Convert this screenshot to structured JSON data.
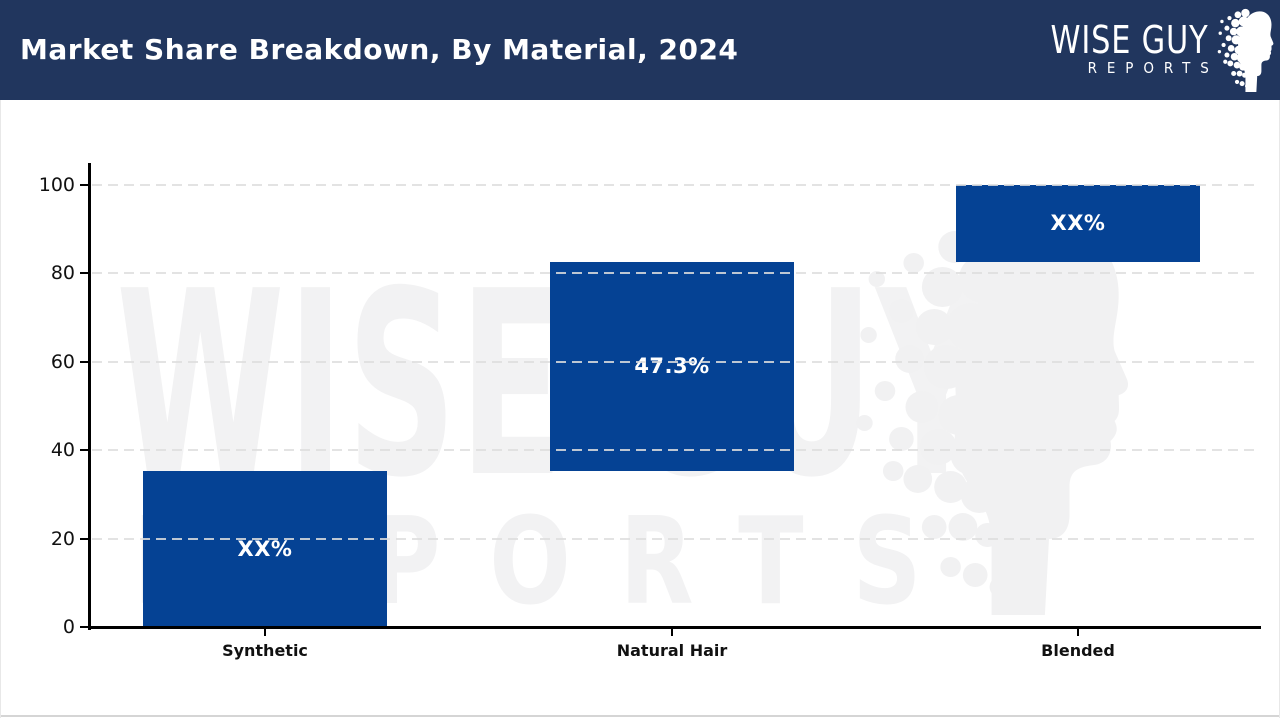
{
  "header": {
    "title": "Market Share Breakdown, By Material, 2024",
    "background_color": "#21365e",
    "logo": {
      "line1": "WISE GUY",
      "line2": "REPORTS",
      "face_icon": "dotted-head-profile"
    }
  },
  "watermark": {
    "line1": "WISE GUY",
    "line2": "REPORTS"
  },
  "chart_data": {
    "type": "bar",
    "variant": "waterfall",
    "title": "Market Share Breakdown, By Material, 2024",
    "categories": [
      "Synthetic",
      "Natural Hair",
      "Blended"
    ],
    "segments": [
      {
        "category": "Synthetic",
        "start": 0,
        "end": 35.3,
        "label": "XX%"
      },
      {
        "category": "Natural Hair",
        "start": 35.3,
        "end": 82.6,
        "label": "47.3%"
      },
      {
        "category": "Blended",
        "start": 82.6,
        "end": 100,
        "label": "XX%"
      }
    ],
    "values": [
      35.3,
      47.3,
      17.4
    ],
    "bar_labels": [
      "XX%",
      "47.3%",
      "XX%"
    ],
    "yticks": [
      0,
      20,
      40,
      60,
      80,
      100
    ],
    "ylim": [
      0,
      100
    ],
    "xlabel": "",
    "ylabel": "",
    "bar_color": "#054294",
    "grid": "horizontal-dashed",
    "gridline_color": "#dedede",
    "legend": null
  }
}
